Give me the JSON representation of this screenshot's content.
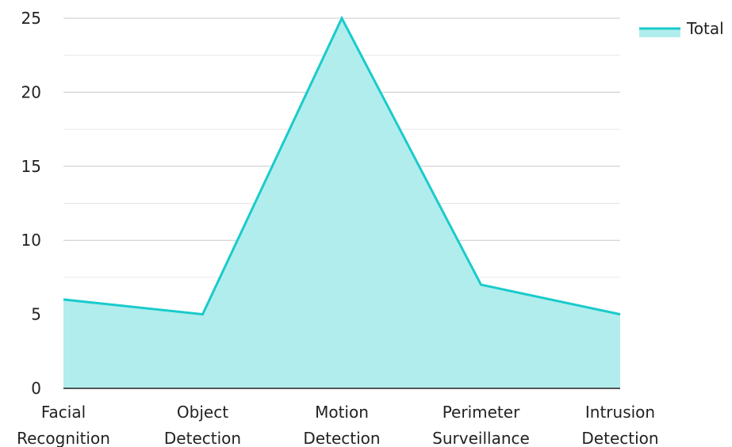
{
  "chart_data": {
    "type": "area",
    "title": "",
    "xlabel": "",
    "ylabel": "",
    "categories": [
      [
        "Facial",
        "Recognition"
      ],
      [
        "Object",
        "Detection"
      ],
      [
        "Motion",
        "Detection"
      ],
      [
        "Perimeter",
        "Surveillance"
      ],
      [
        "Intrusion",
        "Detection"
      ]
    ],
    "series": [
      {
        "name": "Total",
        "values": [
          6,
          5,
          25,
          7,
          5
        ],
        "color": "#1ACBCB",
        "fill": "#B2EDED"
      }
    ],
    "ylim": [
      0,
      25
    ],
    "yticks": [
      "0",
      "5",
      "10",
      "15",
      "20",
      "25"
    ],
    "grid": true,
    "minor_grid": true,
    "legend": {
      "position": "top-right"
    }
  }
}
